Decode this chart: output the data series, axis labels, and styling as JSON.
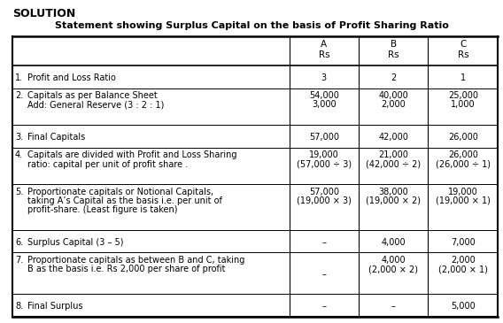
{
  "title_top": "SOLUTION",
  "title_main": "Statement showing Surplus Capital on the basis of Profit Sharing Ratio",
  "rows": [
    {
      "num": "1.",
      "lines": [
        "Profit and Loss Ratio"
      ],
      "A": [
        "3"
      ],
      "B": [
        "2"
      ],
      "C": [
        "1"
      ]
    },
    {
      "num": "2.",
      "lines": [
        "Capitals as per Balance Sheet",
        "Add: General Reserve (3 : 2 : 1)"
      ],
      "A": [
        "54,000",
        "3,000"
      ],
      "B": [
        "40,000",
        "2,000"
      ],
      "C": [
        "25,000",
        "1,000"
      ]
    },
    {
      "num": "3.",
      "lines": [
        "Final Capitals"
      ],
      "A": [
        "57,000"
      ],
      "B": [
        "42,000"
      ],
      "C": [
        "26,000"
      ]
    },
    {
      "num": "4.",
      "lines": [
        "Capitals are divided with Profit and Loss Sharing",
        "ratio: capital per unit of profit share ."
      ],
      "A": [
        "19,000",
        "(57,000 ÷ 3)"
      ],
      "B": [
        "21,000",
        "(42,000 ÷ 2)"
      ],
      "C": [
        "26,000",
        "(26,000 ÷ 1)"
      ]
    },
    {
      "num": "5.",
      "lines": [
        "Proportionate capitals or Notional Capitals,",
        "taking A’s Capital as the basis i.e. per unit of",
        "profit-share. (Least figure is taken)"
      ],
      "A": [
        "57,000",
        "(19,000 × 3)"
      ],
      "B": [
        "38,000",
        "(19,000 × 2)"
      ],
      "C": [
        "19,000",
        "(19,000 × 1)"
      ]
    },
    {
      "num": "6.",
      "lines": [
        "Surplus Capital (3 – 5)"
      ],
      "A": [
        "–"
      ],
      "B": [
        "4,000"
      ],
      "C": [
        "7,000"
      ]
    },
    {
      "num": "7.",
      "lines": [
        "Proportionate capitals as between B and C, taking",
        "B as the basis i.e. Rs 2,000 per share of profit"
      ],
      "A": [
        "–"
      ],
      "B": [
        "4,000",
        "(2,000 × 2)"
      ],
      "C": [
        "2,000",
        "(2,000 × 1)"
      ]
    },
    {
      "num": "8.",
      "lines": [
        "Final Surplus"
      ],
      "A": [
        "–"
      ],
      "B": [
        "–"
      ],
      "C": [
        "5,000"
      ]
    }
  ],
  "bg_color": "#ffffff",
  "text_color": "#000000",
  "line_color": "#000000",
  "font_size": 7.0,
  "title_font_size": 8.0,
  "header_font_size": 7.5,
  "solution_font_size": 9.0
}
